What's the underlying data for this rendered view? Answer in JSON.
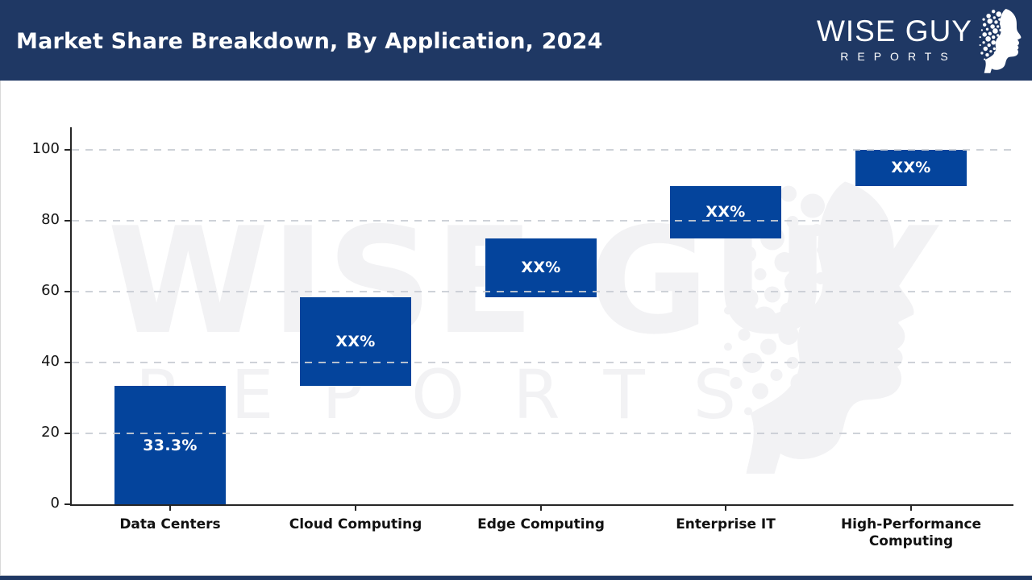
{
  "header": {
    "title": "Market Share Breakdown, By Application, 2024",
    "logo": {
      "brand": "WISE GUY",
      "sub": "REPORTS"
    }
  },
  "watermark": {
    "line1": "WISE GUY",
    "line2": "REPORTS"
  },
  "chart_data": {
    "type": "bar",
    "subtype": "waterfall",
    "title": "Market Share Breakdown, By Application, 2024",
    "xlabel": "",
    "ylabel": "",
    "ylim": [
      0,
      100
    ],
    "yticks": [
      0,
      20,
      40,
      60,
      80,
      100
    ],
    "grid": "horizontal-dashed",
    "legend": "none",
    "categories": [
      "Data Centers",
      "Cloud Computing",
      "Edge Computing",
      "Enterprise IT",
      "High-Performance Computing"
    ],
    "segments": [
      {
        "category": "Data Centers",
        "start": 0,
        "end": 33.3,
        "value": 33.3,
        "label": "33.3%"
      },
      {
        "category": "Cloud Computing",
        "start": 33.3,
        "end": 58.5,
        "value": 25.2,
        "label": "XX%"
      },
      {
        "category": "Edge Computing",
        "start": 58.5,
        "end": 75.0,
        "value": 16.5,
        "label": "XX%"
      },
      {
        "category": "Enterprise IT",
        "start": 75.0,
        "end": 89.8,
        "value": 14.8,
        "label": "XX%"
      },
      {
        "category": "High-Performance Computing",
        "start": 89.8,
        "end": 100.0,
        "value": 10.2,
        "label": "XX%"
      }
    ],
    "bar_color": "#04449c",
    "bar_label_color": "#ffffff"
  },
  "colors": {
    "header_bg": "#1f3864",
    "footer_bg": "#1f3864",
    "bar": "#04449c",
    "axis": "#262626",
    "grid": "#d9dde2",
    "watermark": "#f2f2f4",
    "title_text": "#ffffff"
  }
}
